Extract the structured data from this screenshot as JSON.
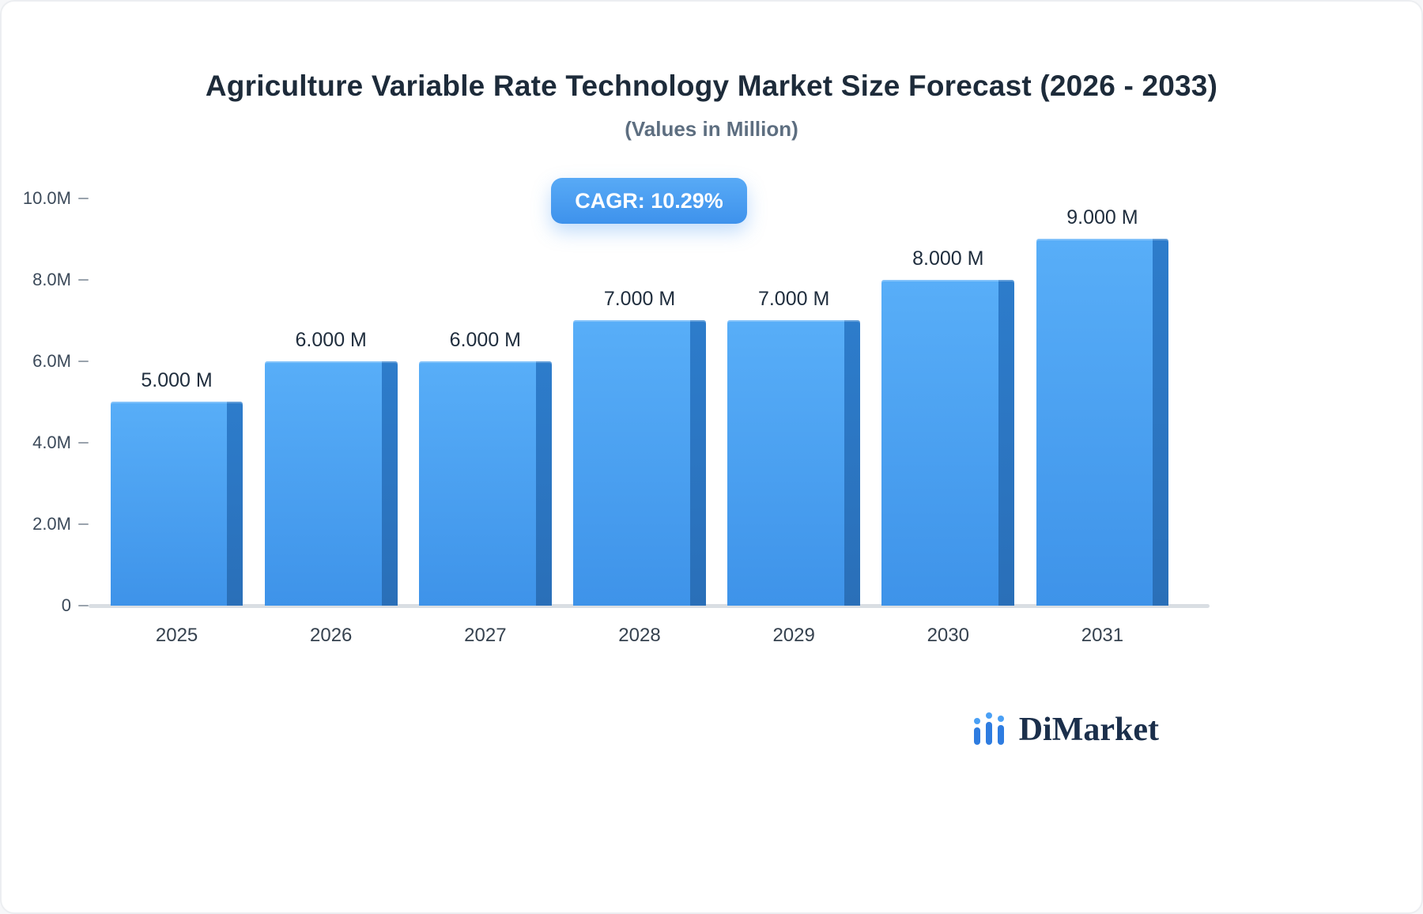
{
  "header": {
    "title": "Agriculture Variable Rate Technology Market Size Forecast (2026 - 2033)",
    "subtitle": "(Values in Million)"
  },
  "badge": {
    "label": "CAGR: 10.29%"
  },
  "chart_data": {
    "type": "bar",
    "categories": [
      "2025",
      "2026",
      "2027",
      "2028",
      "2029",
      "2030",
      "2031"
    ],
    "values": [
      5,
      6,
      6,
      7,
      7,
      8,
      9
    ],
    "value_labels": [
      "5.000 M",
      "6.000 M",
      "6.000 M",
      "7.000 M",
      "7.000 M",
      "8.000 M",
      "9.000 M"
    ],
    "unit": "Million",
    "title": "Agriculture Variable Rate Technology Market Size Forecast (2026 - 2033)",
    "xlabel": "",
    "ylabel": "",
    "ylim": [
      0,
      10
    ],
    "yticks": [
      0,
      2,
      4,
      6,
      8,
      10
    ],
    "ytick_labels": [
      "0",
      "2.0M",
      "4.0M",
      "6.0M",
      "8.0M",
      "10.0M"
    ],
    "grid": false,
    "legend": false,
    "bar_color_top": "#58aef8",
    "bar_color_bottom": "#3e93e9",
    "bar_side_color": "#2d7ccb"
  },
  "footer": {
    "logo_text": "DiMarket"
  },
  "colors": {
    "badge_bg": "#4aa0f3",
    "title_text": "#1d2b3a",
    "subtitle_text": "#5d6e80",
    "axis_text": "#3c4a5a",
    "baseline": "#d9dee3",
    "logo_blue": "#2e7ce0",
    "logo_navy": "#1b2f4b"
  }
}
